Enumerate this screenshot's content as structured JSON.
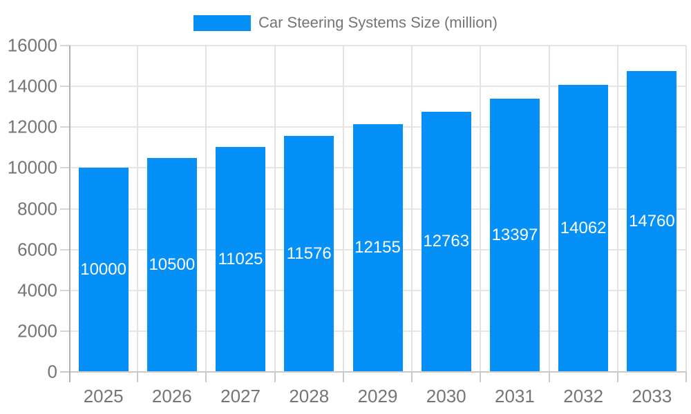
{
  "legend": {
    "label": "Car Steering Systems Size (million)"
  },
  "chart_data": {
    "type": "bar",
    "title": "Car Steering Systems Size (million)",
    "series_name": "Car Steering Systems Size (million)",
    "categories": [
      "2025",
      "2026",
      "2027",
      "2028",
      "2029",
      "2030",
      "2031",
      "2032",
      "2033"
    ],
    "values": [
      10000,
      10500,
      11025,
      11576,
      12155,
      12763,
      13397,
      14062,
      14760
    ],
    "value_labels": [
      "10000",
      "10500",
      "11025",
      "11576",
      "12155",
      "12763",
      "13397",
      "14062",
      "14760"
    ],
    "y_tick_labels": [
      "0",
      "2000",
      "4000",
      "6000",
      "8000",
      "10000",
      "12000",
      "14000",
      "16000"
    ],
    "xlabel": "",
    "ylabel": "",
    "ylim": [
      0,
      16000
    ],
    "ytick_step": 2000,
    "grid": true,
    "legend_position": "top-center",
    "colors": {
      "bar": "#0590f8",
      "value_label": "#ffffff",
      "axis_text": "#757575",
      "gridline": "#e6e6e6",
      "axis_line": "#b0b0b0",
      "tick": "#c9c9c9"
    }
  }
}
